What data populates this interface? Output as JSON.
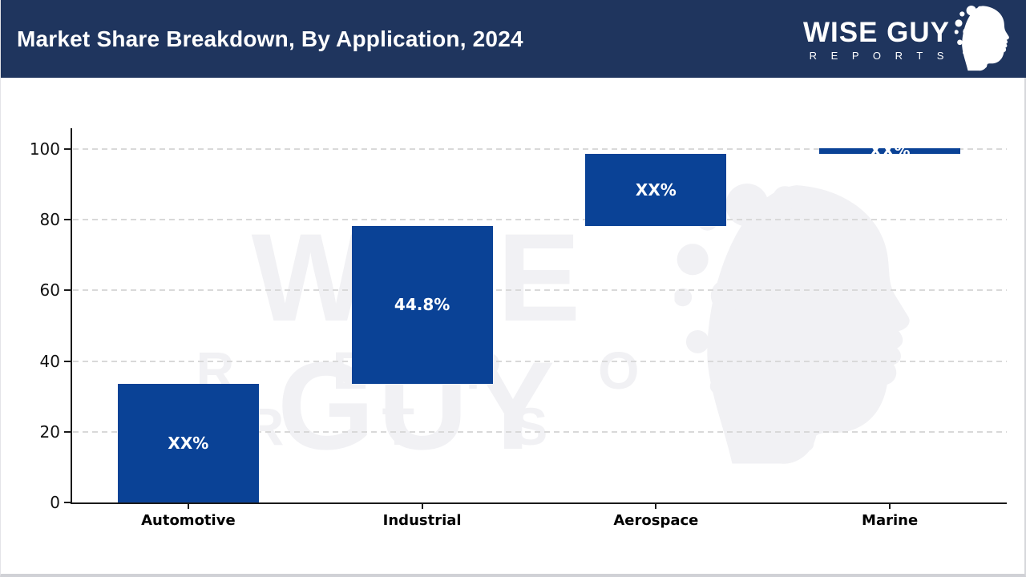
{
  "header": {
    "title": "Market Share Breakdown, By Application, 2024",
    "bg_color": "#1f355e",
    "logo": {
      "line1": "WISE GUY",
      "line2": "R E P O R T S"
    }
  },
  "watermark": {
    "line1": "WISE GUY",
    "line2": "R E P O R T S",
    "color": "#f1f1f4"
  },
  "chart_data": {
    "type": "bar",
    "subtype": "waterfall",
    "title": "Market Share Breakdown, By Application, 2024",
    "categories": [
      "Automotive",
      "Industrial",
      "Aerospace",
      "Marine"
    ],
    "segments": [
      {
        "category": "Automotive",
        "start": 0,
        "end": 33.5,
        "approx_value": 33.5,
        "label": "XX%"
      },
      {
        "category": "Industrial",
        "start": 33.5,
        "end": 78.3,
        "approx_value": 44.8,
        "label": "44.8%"
      },
      {
        "category": "Aerospace",
        "start": 78.3,
        "end": 98.6,
        "approx_value": 20.3,
        "label": "XX%"
      },
      {
        "category": "Marine",
        "start": 98.7,
        "end": 100.2,
        "approx_value": 1.5,
        "label": "XX%"
      }
    ],
    "y_ticks": [
      0,
      20,
      40,
      60,
      80,
      100
    ],
    "ylim": [
      0,
      106
    ],
    "xlabel": "",
    "ylabel": "",
    "bar_color": "#0a4296",
    "bar_label_color": "#ffffff",
    "grid": "horizontal dashed",
    "grid_color": "#d9d9d9",
    "legend": "none"
  }
}
